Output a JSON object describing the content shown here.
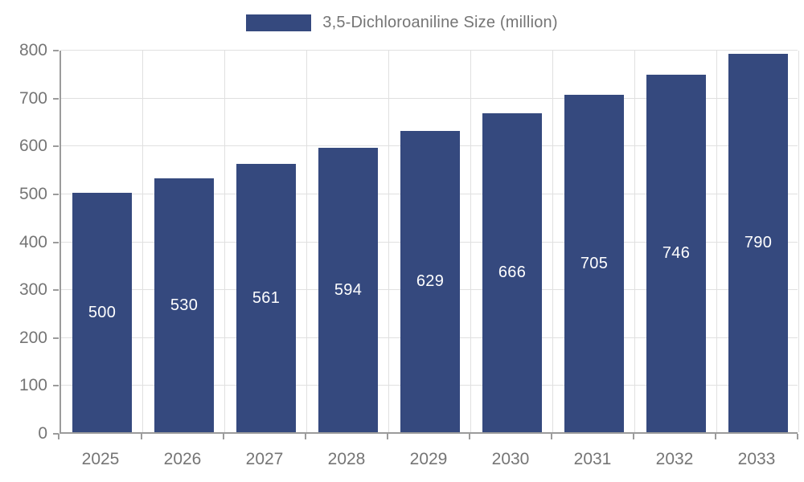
{
  "legend": {
    "label": "3,5-Dichloroaniline Size (million)"
  },
  "chart_data": {
    "type": "bar",
    "title": "3,5-Dichloroaniline Size (million)",
    "categories": [
      "2025",
      "2026",
      "2027",
      "2028",
      "2029",
      "2030",
      "2031",
      "2032",
      "2033"
    ],
    "values": [
      500,
      530,
      561,
      594,
      629,
      666,
      705,
      746,
      790
    ],
    "xlabel": "",
    "ylabel": "",
    "ylim": [
      0,
      800
    ],
    "ytick_step": 100,
    "yticks": [
      0,
      100,
      200,
      300,
      400,
      500,
      600,
      700,
      800
    ],
    "grid": true,
    "legend_position": "top",
    "value_labels": "centered-inside-bars"
  },
  "colors": {
    "bar": "#35497e",
    "value_label": "#ffffff",
    "axis_line": "#9b9b9b",
    "gridline": "#e0e0e0",
    "tick_text": "#757575"
  }
}
